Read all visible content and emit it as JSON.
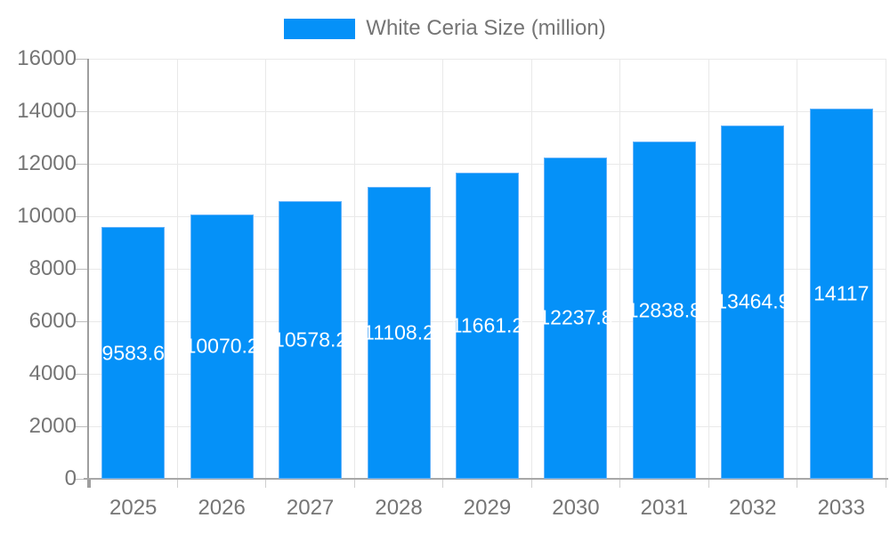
{
  "legend": {
    "label": "White Ceria Size (million)"
  },
  "chart_data": {
    "type": "bar",
    "title": "",
    "xlabel": "",
    "ylabel": "",
    "categories": [
      "2025",
      "2026",
      "2027",
      "2028",
      "2029",
      "2030",
      "2031",
      "2032",
      "2033"
    ],
    "series": [
      {
        "name": "White Ceria Size (million)",
        "values": [
          9583.6,
          10070.2,
          10578.2,
          11108.2,
          11661.2,
          12237.8,
          12838.8,
          13464.9,
          14117
        ]
      }
    ],
    "bar_value_labels": [
      "9583.6",
      "10070.2",
      "10578.2",
      "11108.2",
      "11661.2",
      "12237.8",
      "12838.8",
      "13464.9",
      "14117"
    ],
    "ylim": [
      0,
      16000
    ],
    "yticks": [
      0,
      2000,
      4000,
      6000,
      8000,
      10000,
      12000,
      14000,
      16000
    ],
    "grid": true,
    "legend_position": "top",
    "colors": {
      "bar": "#0591F8",
      "grid": "#e9e9e9",
      "axis": "#9e9e9e",
      "tick": "#bdbdbd",
      "tick_text": "#757575",
      "bar_label_text": "#ffffff"
    }
  }
}
